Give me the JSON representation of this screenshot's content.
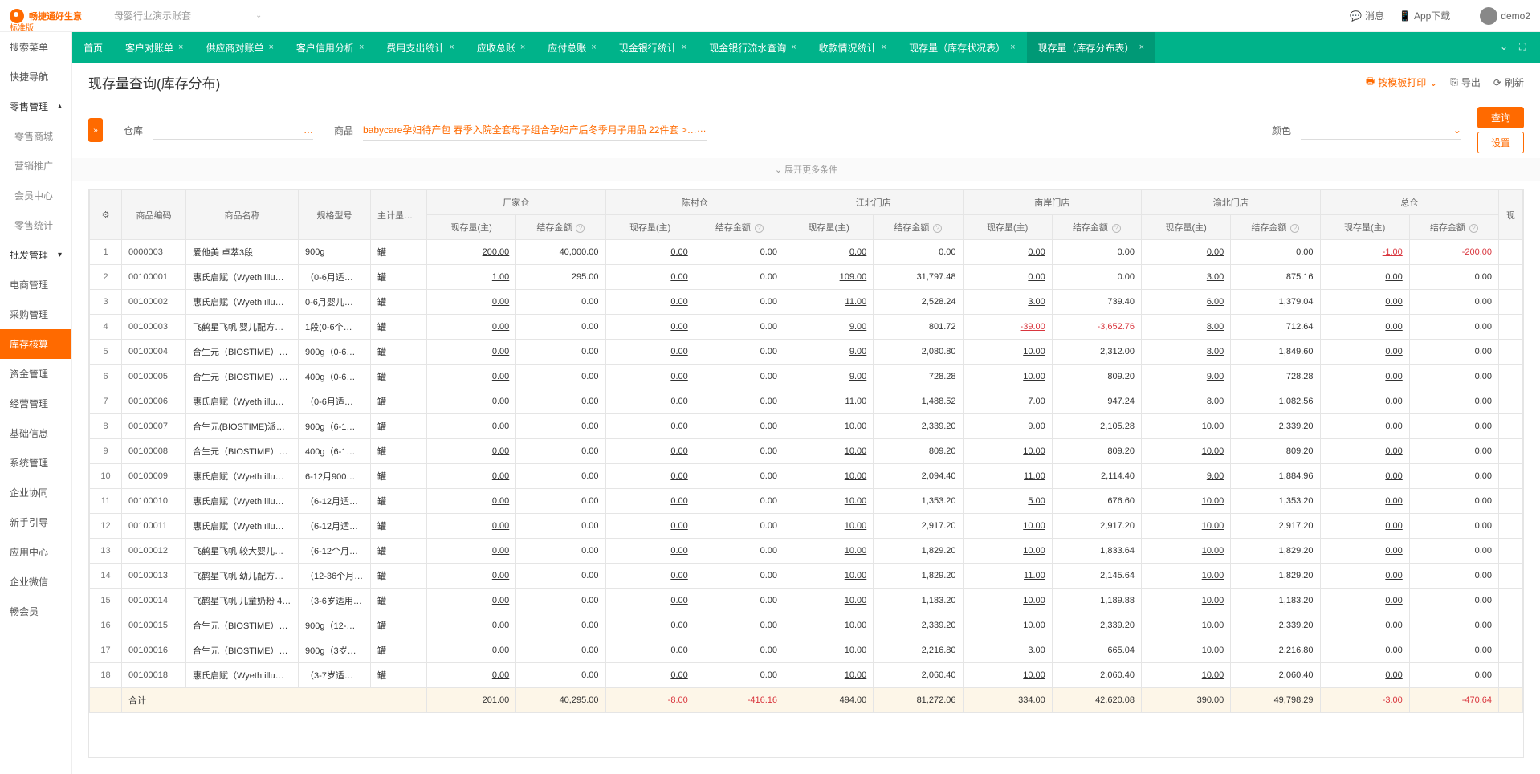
{
  "top": {
    "brand": "畅捷通好生意",
    "edition": "标准版",
    "demo_label": "母婴行业演示账套",
    "msg": "消息",
    "app_download": "App下载",
    "user": "demo2"
  },
  "sidebar": {
    "items": [
      {
        "label": "搜索菜单",
        "type": "item"
      },
      {
        "label": "快捷导航",
        "type": "item"
      },
      {
        "label": "零售管理",
        "type": "header",
        "caret": "▴"
      },
      {
        "label": "零售商城",
        "type": "sub"
      },
      {
        "label": "营销推广",
        "type": "sub"
      },
      {
        "label": "会员中心",
        "type": "sub"
      },
      {
        "label": "零售统计",
        "type": "sub"
      },
      {
        "label": "批发管理",
        "type": "header",
        "caret": "▾"
      },
      {
        "label": "电商管理",
        "type": "item"
      },
      {
        "label": "采购管理",
        "type": "item"
      },
      {
        "label": "库存核算",
        "type": "active"
      },
      {
        "label": "资金管理",
        "type": "item"
      },
      {
        "label": "经营管理",
        "type": "item"
      },
      {
        "label": "基础信息",
        "type": "item"
      },
      {
        "label": "系统管理",
        "type": "item"
      },
      {
        "label": "企业协同",
        "type": "item"
      },
      {
        "label": "新手引导",
        "type": "item"
      },
      {
        "label": "应用中心",
        "type": "item"
      },
      {
        "label": "企业微信",
        "type": "item"
      },
      {
        "label": "畅会员",
        "type": "item"
      }
    ]
  },
  "tabs": [
    {
      "label": "首页",
      "closable": false
    },
    {
      "label": "客户对账单",
      "closable": true
    },
    {
      "label": "供应商对账单",
      "closable": true
    },
    {
      "label": "客户信用分析",
      "closable": true
    },
    {
      "label": "费用支出统计",
      "closable": true
    },
    {
      "label": "应收总账",
      "closable": true
    },
    {
      "label": "应付总账",
      "closable": true
    },
    {
      "label": "现金银行统计",
      "closable": true
    },
    {
      "label": "现金银行流水查询",
      "closable": true
    },
    {
      "label": "收款情况统计",
      "closable": true
    },
    {
      "label": "现存量（库存状况表）",
      "closable": true
    },
    {
      "label": "现存量（库存分布表）",
      "closable": true,
      "active": true
    }
  ],
  "page": {
    "title": "现存量查询(库存分布)",
    "print": "按模板打印",
    "export": "导出",
    "refresh": "刷新"
  },
  "filter": {
    "warehouse_label": "仓库",
    "product_label": "商品",
    "product_value": "babycare孕妇待产包 春季入院全套母子组合孕妇产后冬季月子用品 22件套 >…",
    "color_label": "颜色",
    "query": "查询",
    "settings": "设置",
    "expand": "展开更多条件"
  },
  "table": {
    "headers": {
      "idx": "⚙",
      "code": "商品编码",
      "name": "商品名称",
      "spec": "规格型号",
      "unit": "主计量单位",
      "groups": [
        "厂家仓",
        "陈村仓",
        "江北门店",
        "南岸门店",
        "渝北门店",
        "总仓"
      ],
      "qty": "现存量(主)",
      "amt": "结存金额",
      "extra": "现"
    },
    "rows": [
      {
        "i": 1,
        "code": "0000003",
        "name": "爱他美 卓萃3段",
        "spec": "900g",
        "unit": "罐",
        "v": [
          [
            "200.00",
            "40,000.00"
          ],
          [
            "0.00",
            "0.00"
          ],
          [
            "0.00",
            "0.00"
          ],
          [
            "0.00",
            "0.00"
          ],
          [
            "0.00",
            "0.00"
          ],
          [
            "-1.00",
            "-200.00"
          ]
        ],
        "neg": [
          5
        ]
      },
      {
        "i": 2,
        "code": "00100001",
        "name": "惠氏启赋（Wyeth illu…",
        "spec": "（0-6月适…",
        "unit": "罐",
        "v": [
          [
            "1.00",
            "295.00"
          ],
          [
            "0.00",
            "0.00"
          ],
          [
            "109.00",
            "31,797.48"
          ],
          [
            "0.00",
            "0.00"
          ],
          [
            "3.00",
            "875.16"
          ],
          [
            "0.00",
            "0.00"
          ]
        ]
      },
      {
        "i": 3,
        "code": "00100002",
        "name": "惠氏启赋（Wyeth illu…",
        "spec": "0-6月婴儿…",
        "unit": "罐",
        "v": [
          [
            "0.00",
            "0.00"
          ],
          [
            "0.00",
            "0.00"
          ],
          [
            "11.00",
            "2,528.24"
          ],
          [
            "3.00",
            "739.40"
          ],
          [
            "6.00",
            "1,379.04"
          ],
          [
            "0.00",
            "0.00"
          ]
        ]
      },
      {
        "i": 4,
        "code": "00100003",
        "name": "飞鹤星飞帆 婴儿配方奶…",
        "spec": "1段(0-6个…",
        "unit": "罐",
        "v": [
          [
            "0.00",
            "0.00"
          ],
          [
            "0.00",
            "0.00"
          ],
          [
            "9.00",
            "801.72"
          ],
          [
            "-39.00",
            "-3,652.76"
          ],
          [
            "8.00",
            "712.64"
          ],
          [
            "0.00",
            "0.00"
          ]
        ],
        "neg": [
          3
        ]
      },
      {
        "i": 5,
        "code": "00100004",
        "name": "合生元（BIOSTIME）…",
        "spec": "900g（0-6…",
        "unit": "罐",
        "v": [
          [
            "0.00",
            "0.00"
          ],
          [
            "0.00",
            "0.00"
          ],
          [
            "9.00",
            "2,080.80"
          ],
          [
            "10.00",
            "2,312.00"
          ],
          [
            "8.00",
            "1,849.60"
          ],
          [
            "0.00",
            "0.00"
          ]
        ]
      },
      {
        "i": 6,
        "code": "00100005",
        "name": "合生元（BIOSTIME）…",
        "spec": "400g（0-6…",
        "unit": "罐",
        "v": [
          [
            "0.00",
            "0.00"
          ],
          [
            "0.00",
            "0.00"
          ],
          [
            "9.00",
            "728.28"
          ],
          [
            "10.00",
            "809.20"
          ],
          [
            "9.00",
            "728.28"
          ],
          [
            "0.00",
            "0.00"
          ]
        ]
      },
      {
        "i": 7,
        "code": "00100006",
        "name": "惠氏启赋（Wyeth illu…",
        "spec": "（0-6月适…",
        "unit": "罐",
        "v": [
          [
            "0.00",
            "0.00"
          ],
          [
            "0.00",
            "0.00"
          ],
          [
            "11.00",
            "1,488.52"
          ],
          [
            "7.00",
            "947.24"
          ],
          [
            "8.00",
            "1,082.56"
          ],
          [
            "0.00",
            "0.00"
          ]
        ]
      },
      {
        "i": 8,
        "code": "00100007",
        "name": "合生元(BIOSTIME)派…",
        "spec": "900g（6-1…",
        "unit": "罐",
        "v": [
          [
            "0.00",
            "0.00"
          ],
          [
            "0.00",
            "0.00"
          ],
          [
            "10.00",
            "2,339.20"
          ],
          [
            "9.00",
            "2,105.28"
          ],
          [
            "10.00",
            "2,339.20"
          ],
          [
            "0.00",
            "0.00"
          ]
        ]
      },
      {
        "i": 9,
        "code": "00100008",
        "name": "合生元（BIOSTIME）…",
        "spec": "400g（6-1…",
        "unit": "罐",
        "v": [
          [
            "0.00",
            "0.00"
          ],
          [
            "0.00",
            "0.00"
          ],
          [
            "10.00",
            "809.20"
          ],
          [
            "10.00",
            "809.20"
          ],
          [
            "10.00",
            "809.20"
          ],
          [
            "0.00",
            "0.00"
          ]
        ]
      },
      {
        "i": 10,
        "code": "00100009",
        "name": "惠氏启赋（Wyeth illu…",
        "spec": "6-12月900…",
        "unit": "罐",
        "v": [
          [
            "0.00",
            "0.00"
          ],
          [
            "0.00",
            "0.00"
          ],
          [
            "10.00",
            "2,094.40"
          ],
          [
            "11.00",
            "2,114.40"
          ],
          [
            "9.00",
            "1,884.96"
          ],
          [
            "0.00",
            "0.00"
          ]
        ]
      },
      {
        "i": 11,
        "code": "00100010",
        "name": "惠氏启赋（Wyeth illu…",
        "spec": "（6-12月适…",
        "unit": "罐",
        "v": [
          [
            "0.00",
            "0.00"
          ],
          [
            "0.00",
            "0.00"
          ],
          [
            "10.00",
            "1,353.20"
          ],
          [
            "5.00",
            "676.60"
          ],
          [
            "10.00",
            "1,353.20"
          ],
          [
            "0.00",
            "0.00"
          ]
        ]
      },
      {
        "i": 12,
        "code": "00100011",
        "name": "惠氏启赋（Wyeth illu…",
        "spec": "（6-12月适…",
        "unit": "罐",
        "v": [
          [
            "0.00",
            "0.00"
          ],
          [
            "0.00",
            "0.00"
          ],
          [
            "10.00",
            "2,917.20"
          ],
          [
            "10.00",
            "2,917.20"
          ],
          [
            "10.00",
            "2,917.20"
          ],
          [
            "0.00",
            "0.00"
          ]
        ]
      },
      {
        "i": 13,
        "code": "00100012",
        "name": "飞鹤星飞帆 较大婴儿配…",
        "spec": "（6-12个月…",
        "unit": "罐",
        "v": [
          [
            "0.00",
            "0.00"
          ],
          [
            "0.00",
            "0.00"
          ],
          [
            "10.00",
            "1,829.20"
          ],
          [
            "10.00",
            "1,833.64"
          ],
          [
            "10.00",
            "1,829.20"
          ],
          [
            "0.00",
            "0.00"
          ]
        ]
      },
      {
        "i": 14,
        "code": "00100013",
        "name": "飞鹤星飞帆 幼儿配方奶…",
        "spec": "（12-36个月…",
        "unit": "罐",
        "v": [
          [
            "0.00",
            "0.00"
          ],
          [
            "0.00",
            "0.00"
          ],
          [
            "10.00",
            "1,829.20"
          ],
          [
            "11.00",
            "2,145.64"
          ],
          [
            "10.00",
            "1,829.20"
          ],
          [
            "0.00",
            "0.00"
          ]
        ]
      },
      {
        "i": 15,
        "code": "00100014",
        "name": "飞鹤星飞帆 儿童奶粉 4…",
        "spec": "（3-6岁适用）…",
        "unit": "罐",
        "v": [
          [
            "0.00",
            "0.00"
          ],
          [
            "0.00",
            "0.00"
          ],
          [
            "10.00",
            "1,183.20"
          ],
          [
            "10.00",
            "1,189.88"
          ],
          [
            "10.00",
            "1,183.20"
          ],
          [
            "0.00",
            "0.00"
          ]
        ]
      },
      {
        "i": 16,
        "code": "00100015",
        "name": "合生元（BIOSTIME）…",
        "spec": "900g（12-…",
        "unit": "罐",
        "v": [
          [
            "0.00",
            "0.00"
          ],
          [
            "0.00",
            "0.00"
          ],
          [
            "10.00",
            "2,339.20"
          ],
          [
            "10.00",
            "2,339.20"
          ],
          [
            "10.00",
            "2,339.20"
          ],
          [
            "0.00",
            "0.00"
          ]
        ]
      },
      {
        "i": 17,
        "code": "00100016",
        "name": "合生元（BIOSTIME）…",
        "spec": "900g（3岁…",
        "unit": "罐",
        "v": [
          [
            "0.00",
            "0.00"
          ],
          [
            "0.00",
            "0.00"
          ],
          [
            "10.00",
            "2,216.80"
          ],
          [
            "3.00",
            "665.04"
          ],
          [
            "10.00",
            "2,216.80"
          ],
          [
            "0.00",
            "0.00"
          ]
        ]
      },
      {
        "i": 18,
        "code": "00100018",
        "name": "惠氏启赋（Wyeth illu…",
        "spec": "（3-7岁适…",
        "unit": "罐",
        "v": [
          [
            "0.00",
            "0.00"
          ],
          [
            "0.00",
            "0.00"
          ],
          [
            "10.00",
            "2,060.40"
          ],
          [
            "10.00",
            "2,060.40"
          ],
          [
            "10.00",
            "2,060.40"
          ],
          [
            "0.00",
            "0.00"
          ]
        ]
      }
    ],
    "total": {
      "label": "合计",
      "v": [
        [
          "201.00",
          "40,295.00"
        ],
        [
          "-8.00",
          "-416.16"
        ],
        [
          "494.00",
          "81,272.06"
        ],
        [
          "334.00",
          "42,620.08"
        ],
        [
          "390.00",
          "49,798.29"
        ],
        [
          "-3.00",
          "-470.64"
        ]
      ],
      "neg": [
        1,
        5
      ]
    }
  }
}
